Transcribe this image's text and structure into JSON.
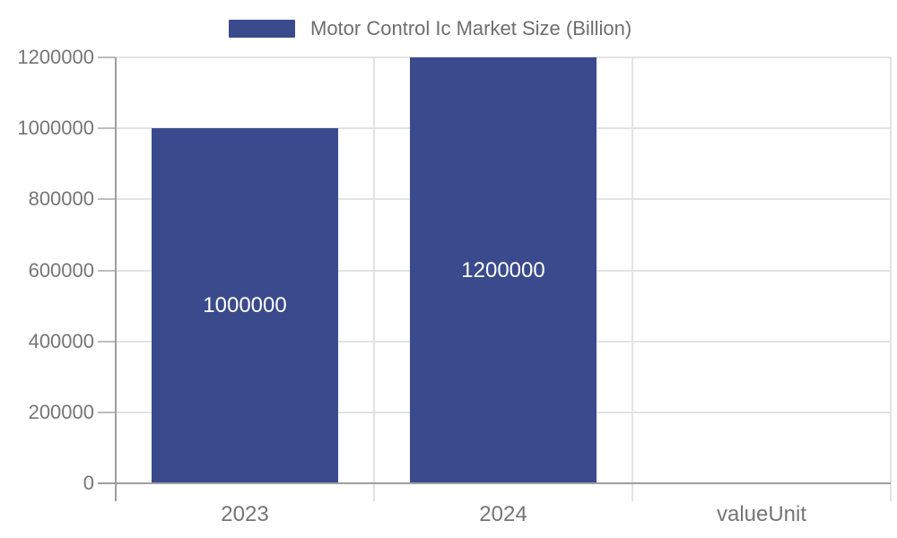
{
  "legend": {
    "label": "Motor Control Ic Market Size (Billion)"
  },
  "chart_data": {
    "type": "bar",
    "title": "Motor Control Ic Market Size (Billion)",
    "xlabel": "",
    "ylabel": "",
    "categories": [
      "2023",
      "2024",
      "valueUnit"
    ],
    "values": [
      1000000,
      1200000,
      0
    ],
    "bar_labels": [
      "1000000",
      "1200000",
      ""
    ],
    "y_tick_labels": [
      "0",
      "200000",
      "400000",
      "600000",
      "800000",
      "1000000",
      "1200000"
    ],
    "y_ticks": [
      0,
      200000,
      400000,
      600000,
      800000,
      1000000,
      1200000
    ],
    "ylim": [
      0,
      1200000
    ],
    "legend_position": "top-center",
    "grid": true,
    "colors": {
      "bar": "#3A4A8C",
      "axis_line": "#9e9e9e",
      "grid_line": "#e3e3e3",
      "tick_mark": "#bdbdbd",
      "axis_label": "#757575",
      "legend_label": "#6e6e6e",
      "bar_value_label": "#ffffff",
      "background": "#ffffff"
    }
  }
}
